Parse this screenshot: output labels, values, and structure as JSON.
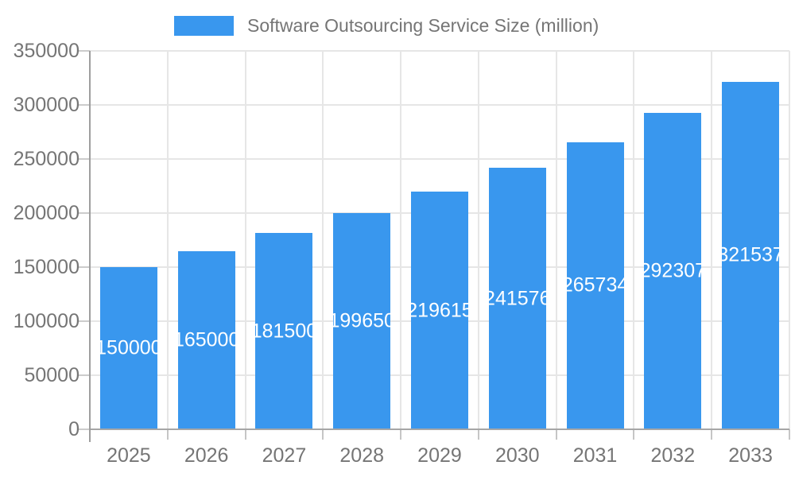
{
  "legend": {
    "label": "Software Outsourcing Service Size (million)"
  },
  "chart_data": {
    "type": "bar",
    "title": "Software Outsourcing Service Size (million)",
    "categories": [
      "2025",
      "2026",
      "2027",
      "2028",
      "2029",
      "2030",
      "2031",
      "2032",
      "2033"
    ],
    "values": [
      150000,
      165000,
      181500,
      199650,
      219615,
      241576,
      265734,
      292307,
      321537
    ],
    "bar_labels": [
      "150000",
      "165000",
      "181500",
      "199650",
      "219615",
      "241576",
      "265734",
      "292307",
      "321537"
    ],
    "y_ticks": [
      0,
      50000,
      100000,
      150000,
      200000,
      250000,
      300000,
      350000
    ],
    "y_tick_labels": [
      "0",
      "50000",
      "100000",
      "150000",
      "200000",
      "250000",
      "300000",
      "350000"
    ],
    "ylim": [
      0,
      350000
    ],
    "xlabel": "",
    "ylabel": "",
    "grid": true,
    "legend_position": "top",
    "colors": {
      "bar": "#3997EE",
      "bar_label_text": "#FFFFFF",
      "axis_text": "#757575",
      "grid_line": "#E6E6E6",
      "axis_line": "#9E9E9E",
      "baseline": "#A6A6A6",
      "tick_line": "#CCCCCC",
      "background": "#FFFFFF"
    }
  }
}
